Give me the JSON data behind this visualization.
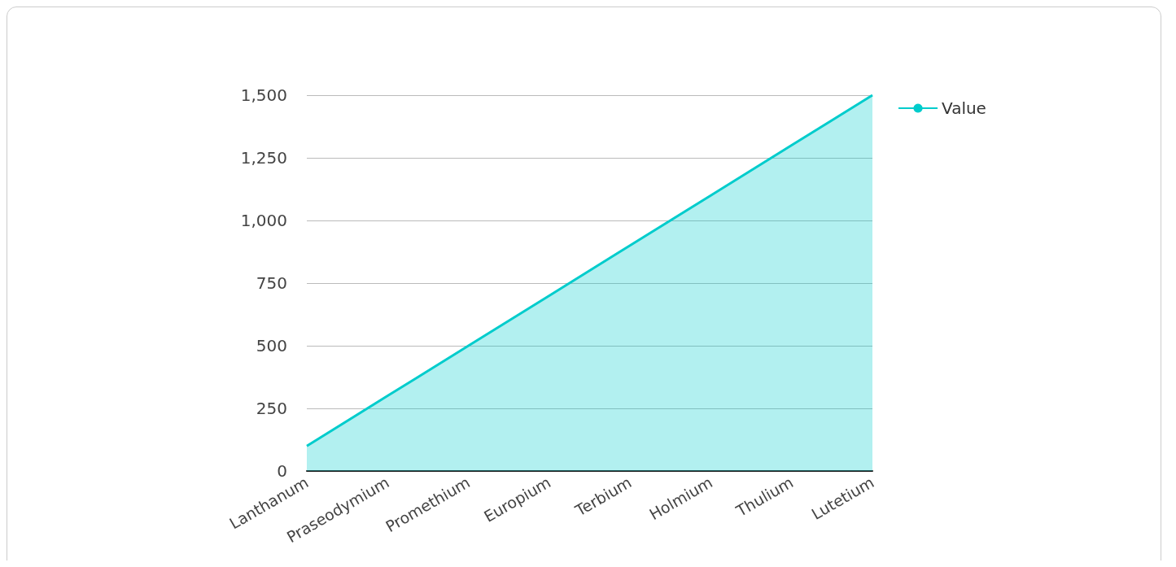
{
  "chart_data": {
    "type": "area",
    "categories": [
      "Lanthanum",
      "Praseodymium",
      "Promethium",
      "Europium",
      "Terbium",
      "Holmium",
      "Thulium",
      "Lutetium"
    ],
    "series": [
      {
        "name": "Value",
        "color": "#00cccc",
        "values": [
          100,
          300,
          500,
          700,
          900,
          1100,
          1300,
          1500
        ]
      }
    ],
    "ylim": [
      0,
      1500
    ],
    "yticks": [
      0,
      250,
      500,
      750,
      {
        "value": 1000,
        "label": "1,000"
      },
      {
        "value": 1250,
        "label": "1,250"
      },
      {
        "value": 1500,
        "label": "1,500"
      }
    ],
    "grid": "y",
    "legend": "top right"
  }
}
